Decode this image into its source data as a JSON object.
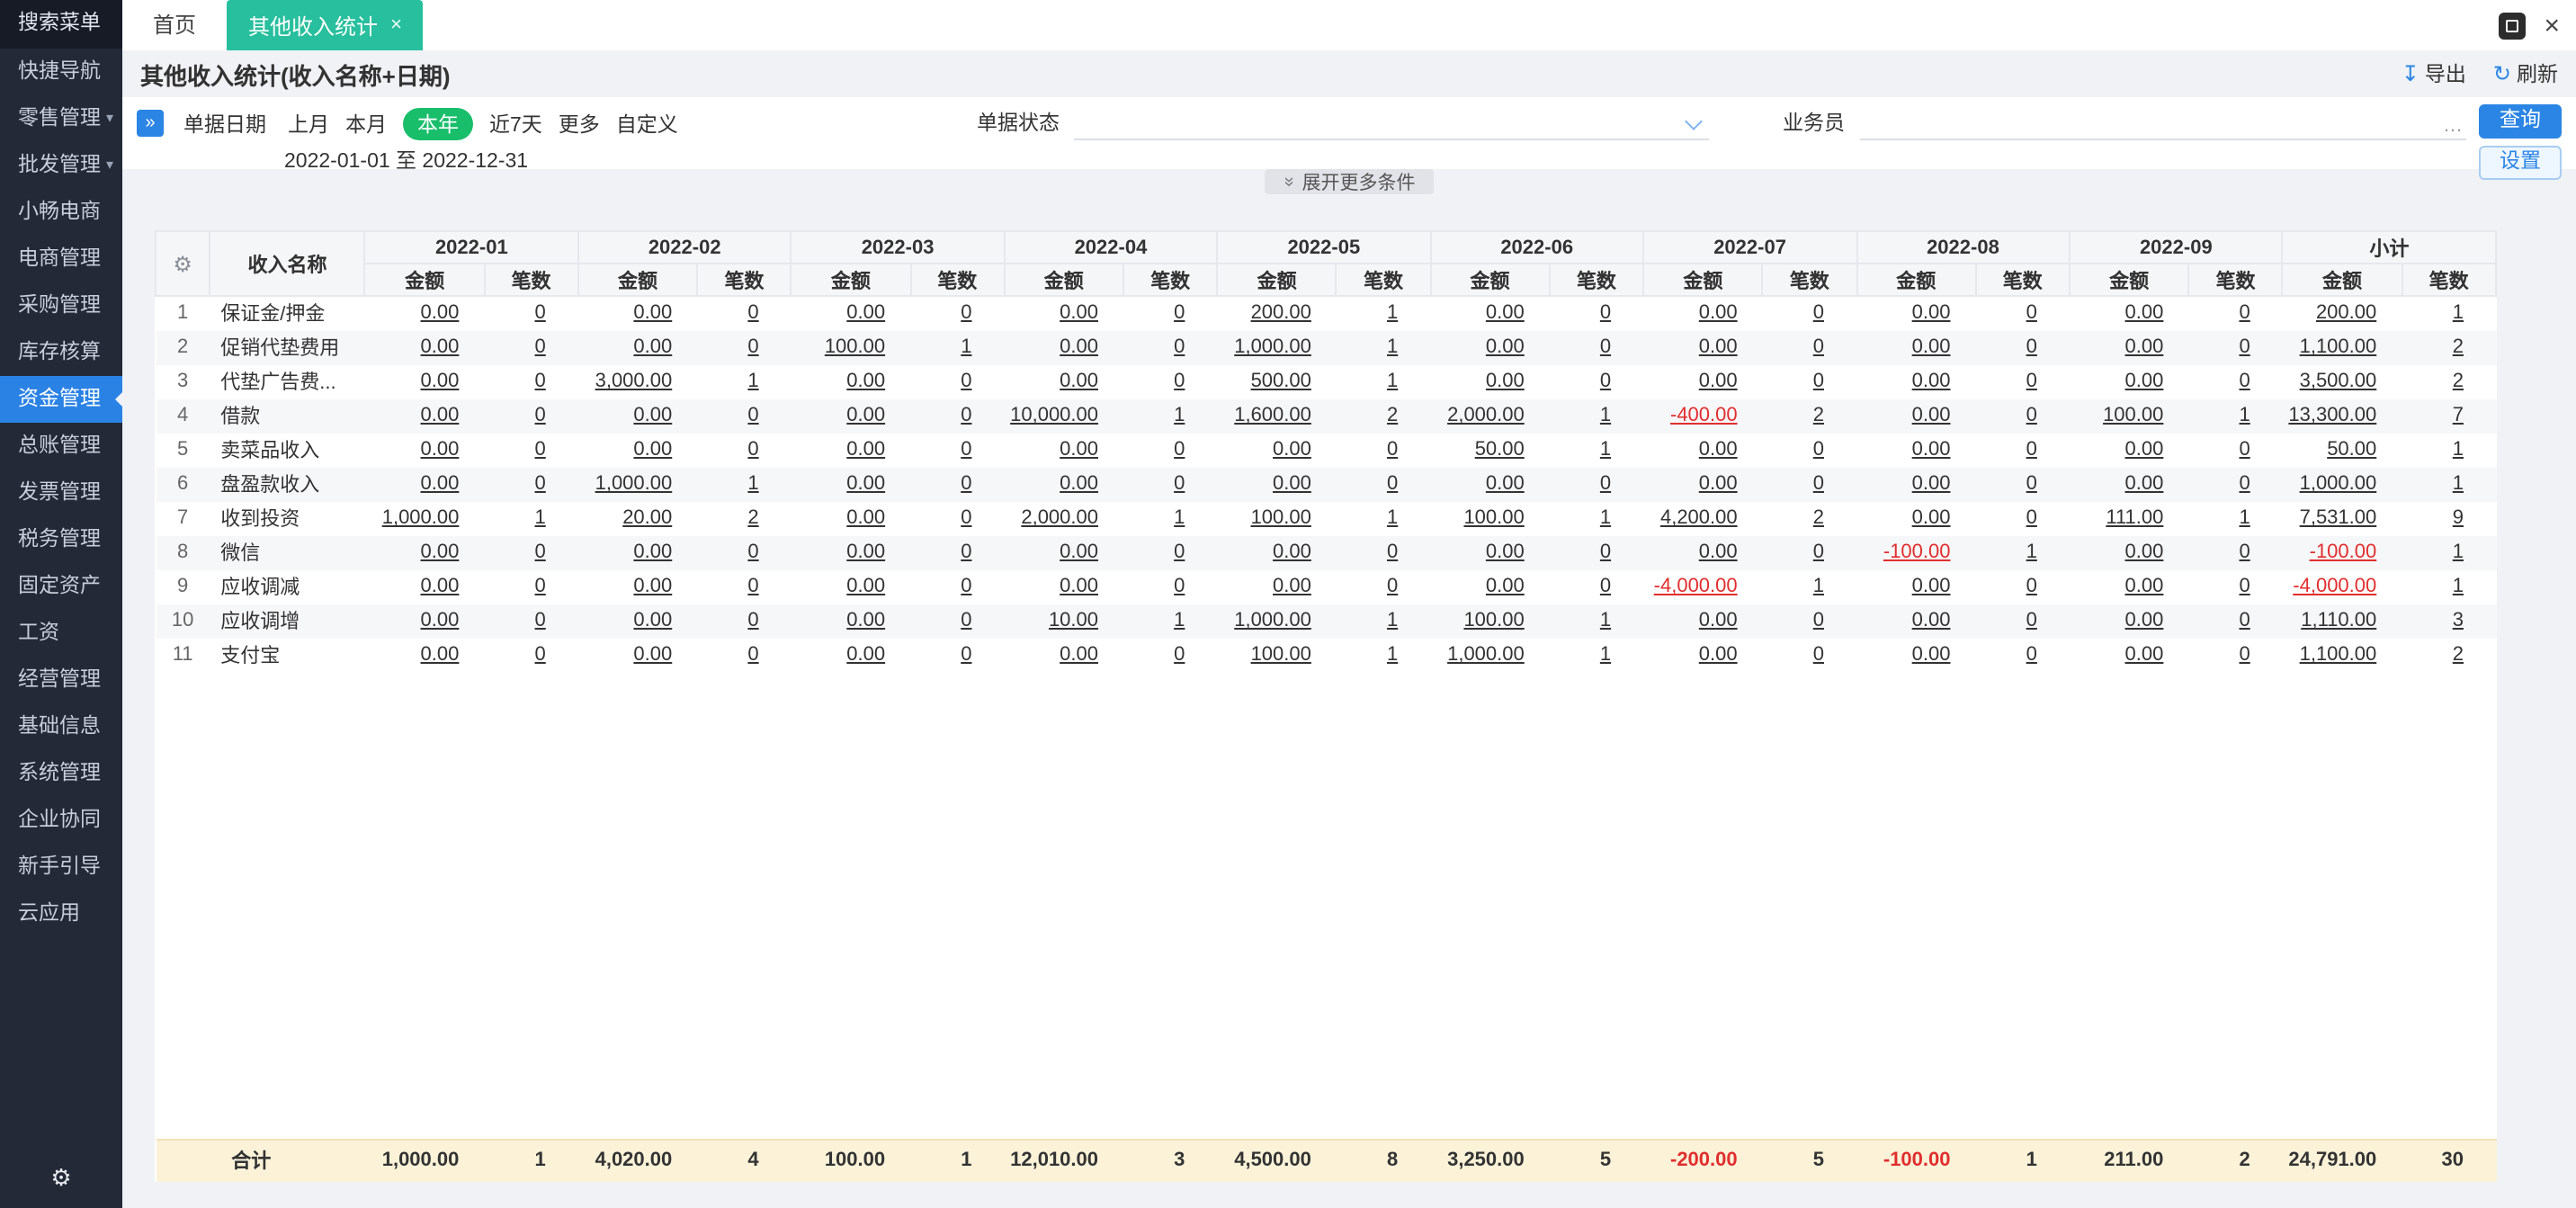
{
  "icons": {
    "gear": "⚙",
    "export": "↧",
    "refresh": "↻",
    "caret": "▾",
    "close": "×",
    "expand": "»",
    "ellipsis": "…"
  },
  "sidebar": {
    "search_label": "搜索菜单",
    "items": [
      {
        "label": "快捷导航"
      },
      {
        "label": "零售管理",
        "caret": true
      },
      {
        "label": "批发管理",
        "caret": true
      },
      {
        "label": "小畅电商"
      },
      {
        "label": "电商管理"
      },
      {
        "label": "采购管理"
      },
      {
        "label": "库存核算"
      },
      {
        "label": "资金管理",
        "active": true
      },
      {
        "label": "总账管理"
      },
      {
        "label": "发票管理"
      },
      {
        "label": "税务管理"
      },
      {
        "label": "固定资产"
      },
      {
        "label": "工资"
      },
      {
        "label": "经营管理"
      },
      {
        "label": "基础信息"
      },
      {
        "label": "系统管理"
      },
      {
        "label": "企业协同"
      },
      {
        "label": "新手引导"
      },
      {
        "label": "云应用"
      }
    ]
  },
  "tabs": {
    "home": "首页",
    "active_label": "其他收入统计"
  },
  "header": {
    "title": "其他收入统计(收入名称+日期)",
    "export_label": "导出",
    "refresh_label": "刷新"
  },
  "filters": {
    "date_label": "单据日期",
    "date_options": [
      "上月",
      "本月",
      "本年",
      "近7天",
      "更多",
      "自定义"
    ],
    "date_selected": "本年",
    "date_range": "2022-01-01 至 2022-12-31",
    "status_label": "单据状态",
    "status_value": "",
    "salesman_label": "业务员",
    "salesman_value": "",
    "expand_more_label": "展开更多条件",
    "query_button": "查询",
    "settings_button": "设置"
  },
  "table": {
    "columns": {
      "name": "收入名称",
      "amount": "金额",
      "count": "笔数",
      "subtotal": "小计"
    },
    "months": [
      "2022-01",
      "2022-02",
      "2022-03",
      "2022-04",
      "2022-05",
      "2022-06",
      "2022-07",
      "2022-08",
      "2022-09"
    ],
    "rows": [
      {
        "name": "保证金/押金",
        "cells": [
          [
            "0.00",
            "0"
          ],
          [
            "0.00",
            "0"
          ],
          [
            "0.00",
            "0"
          ],
          [
            "0.00",
            "0"
          ],
          [
            "200.00",
            "1"
          ],
          [
            "0.00",
            "0"
          ],
          [
            "0.00",
            "0"
          ],
          [
            "0.00",
            "0"
          ],
          [
            "0.00",
            "0"
          ]
        ],
        "subtotal": [
          "200.00",
          "1"
        ]
      },
      {
        "name": "促销代垫费用",
        "cells": [
          [
            "0.00",
            "0"
          ],
          [
            "0.00",
            "0"
          ],
          [
            "100.00",
            "1"
          ],
          [
            "0.00",
            "0"
          ],
          [
            "1,000.00",
            "1"
          ],
          [
            "0.00",
            "0"
          ],
          [
            "0.00",
            "0"
          ],
          [
            "0.00",
            "0"
          ],
          [
            "0.00",
            "0"
          ]
        ],
        "subtotal": [
          "1,100.00",
          "2"
        ]
      },
      {
        "name": "代垫广告费...",
        "cells": [
          [
            "0.00",
            "0"
          ],
          [
            "3,000.00",
            "1"
          ],
          [
            "0.00",
            "0"
          ],
          [
            "0.00",
            "0"
          ],
          [
            "500.00",
            "1"
          ],
          [
            "0.00",
            "0"
          ],
          [
            "0.00",
            "0"
          ],
          [
            "0.00",
            "0"
          ],
          [
            "0.00",
            "0"
          ]
        ],
        "subtotal": [
          "3,500.00",
          "2"
        ]
      },
      {
        "name": "借款",
        "cells": [
          [
            "0.00",
            "0"
          ],
          [
            "0.00",
            "0"
          ],
          [
            "0.00",
            "0"
          ],
          [
            "10,000.00",
            "1"
          ],
          [
            "1,600.00",
            "2"
          ],
          [
            "2,000.00",
            "1"
          ],
          [
            "-400.00",
            "2"
          ],
          [
            "0.00",
            "0"
          ],
          [
            "100.00",
            "1"
          ]
        ],
        "subtotal": [
          "13,300.00",
          "7"
        ]
      },
      {
        "name": "卖菜品收入",
        "cells": [
          [
            "0.00",
            "0"
          ],
          [
            "0.00",
            "0"
          ],
          [
            "0.00",
            "0"
          ],
          [
            "0.00",
            "0"
          ],
          [
            "0.00",
            "0"
          ],
          [
            "50.00",
            "1"
          ],
          [
            "0.00",
            "0"
          ],
          [
            "0.00",
            "0"
          ],
          [
            "0.00",
            "0"
          ]
        ],
        "subtotal": [
          "50.00",
          "1"
        ]
      },
      {
        "name": "盘盈款收入",
        "cells": [
          [
            "0.00",
            "0"
          ],
          [
            "1,000.00",
            "1"
          ],
          [
            "0.00",
            "0"
          ],
          [
            "0.00",
            "0"
          ],
          [
            "0.00",
            "0"
          ],
          [
            "0.00",
            "0"
          ],
          [
            "0.00",
            "0"
          ],
          [
            "0.00",
            "0"
          ],
          [
            "0.00",
            "0"
          ]
        ],
        "subtotal": [
          "1,000.00",
          "1"
        ]
      },
      {
        "name": "收到投资",
        "cells": [
          [
            "1,000.00",
            "1"
          ],
          [
            "20.00",
            "2"
          ],
          [
            "0.00",
            "0"
          ],
          [
            "2,000.00",
            "1"
          ],
          [
            "100.00",
            "1"
          ],
          [
            "100.00",
            "1"
          ],
          [
            "4,200.00",
            "2"
          ],
          [
            "0.00",
            "0"
          ],
          [
            "111.00",
            "1"
          ]
        ],
        "subtotal": [
          "7,531.00",
          "9"
        ]
      },
      {
        "name": "微信",
        "cells": [
          [
            "0.00",
            "0"
          ],
          [
            "0.00",
            "0"
          ],
          [
            "0.00",
            "0"
          ],
          [
            "0.00",
            "0"
          ],
          [
            "0.00",
            "0"
          ],
          [
            "0.00",
            "0"
          ],
          [
            "0.00",
            "0"
          ],
          [
            "-100.00",
            "1"
          ],
          [
            "0.00",
            "0"
          ]
        ],
        "subtotal": [
          "-100.00",
          "1"
        ]
      },
      {
        "name": "应收调减",
        "cells": [
          [
            "0.00",
            "0"
          ],
          [
            "0.00",
            "0"
          ],
          [
            "0.00",
            "0"
          ],
          [
            "0.00",
            "0"
          ],
          [
            "0.00",
            "0"
          ],
          [
            "0.00",
            "0"
          ],
          [
            "-4,000.00",
            "1"
          ],
          [
            "0.00",
            "0"
          ],
          [
            "0.00",
            "0"
          ]
        ],
        "subtotal": [
          "-4,000.00",
          "1"
        ]
      },
      {
        "name": "应收调增",
        "cells": [
          [
            "0.00",
            "0"
          ],
          [
            "0.00",
            "0"
          ],
          [
            "0.00",
            "0"
          ],
          [
            "10.00",
            "1"
          ],
          [
            "1,000.00",
            "1"
          ],
          [
            "100.00",
            "1"
          ],
          [
            "0.00",
            "0"
          ],
          [
            "0.00",
            "0"
          ],
          [
            "0.00",
            "0"
          ]
        ],
        "subtotal": [
          "1,110.00",
          "3"
        ]
      },
      {
        "name": "支付宝",
        "cells": [
          [
            "0.00",
            "0"
          ],
          [
            "0.00",
            "0"
          ],
          [
            "0.00",
            "0"
          ],
          [
            "0.00",
            "0"
          ],
          [
            "100.00",
            "1"
          ],
          [
            "1,000.00",
            "1"
          ],
          [
            "0.00",
            "0"
          ],
          [
            "0.00",
            "0"
          ],
          [
            "0.00",
            "0"
          ]
        ],
        "subtotal": [
          "1,100.00",
          "2"
        ]
      }
    ],
    "total": {
      "label": "合计",
      "cells": [
        [
          "1,000.00",
          "1"
        ],
        [
          "4,020.00",
          "4"
        ],
        [
          "100.00",
          "1"
        ],
        [
          "12,010.00",
          "3"
        ],
        [
          "4,500.00",
          "8"
        ],
        [
          "3,250.00",
          "5"
        ],
        [
          "-200.00",
          "5"
        ],
        [
          "-100.00",
          "1"
        ],
        [
          "211.00",
          "2"
        ]
      ],
      "subtotal": [
        "24,791.00",
        "30"
      ]
    }
  }
}
